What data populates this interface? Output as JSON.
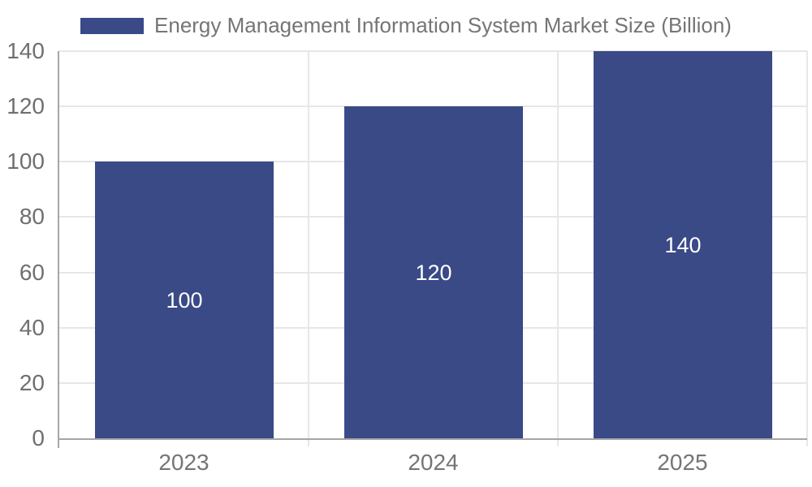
{
  "legend": {
    "label": "Energy Management Information System Market Size (Billion)"
  },
  "chart_data": {
    "type": "bar",
    "title": "Energy Management Information System Market Size (Billion)",
    "categories": [
      "2023",
      "2024",
      "2025"
    ],
    "values": [
      100,
      120,
      140
    ],
    "bar_value_labels": [
      "100",
      "120",
      "140"
    ],
    "xlabel": "",
    "ylabel": "",
    "ylim": [
      0,
      140
    ],
    "yticks": [
      0,
      20,
      40,
      60,
      80,
      100,
      120,
      140
    ],
    "grid": true,
    "legend_position": "top-center",
    "colors": {
      "bar": "#3A4A87",
      "gridline": "#e7e7e7",
      "axis_line": "#a6a6a6",
      "tick_label": "#757575",
      "bar_label": "#ffffff",
      "background": "#ffffff"
    }
  }
}
